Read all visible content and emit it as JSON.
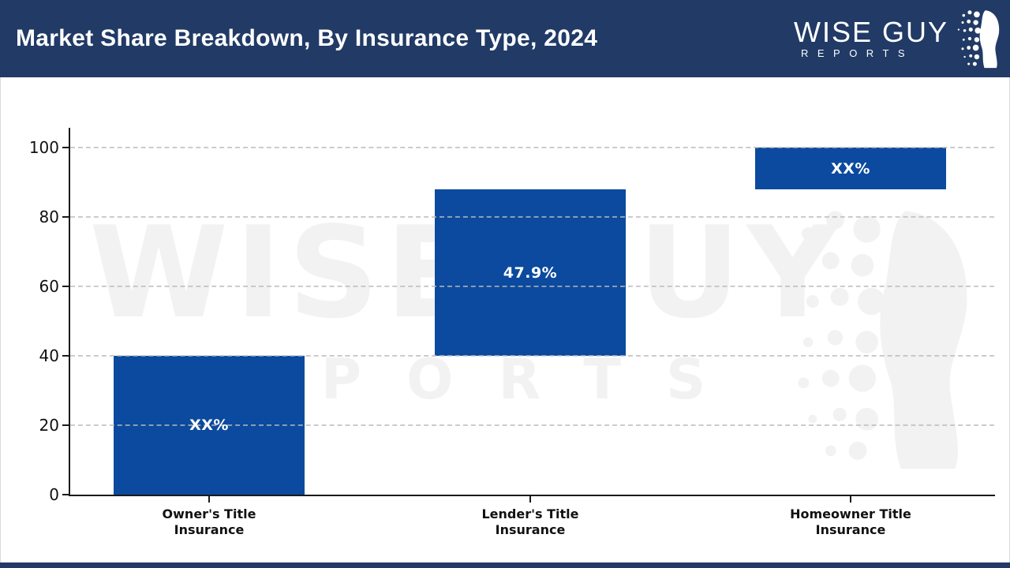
{
  "header": {
    "title": "Market Share Breakdown, By Insurance Type, 2024",
    "logo": {
      "line1": "WISE GUY",
      "line2": "REPORTS"
    }
  },
  "watermark": {
    "line1": "WISE GUY",
    "line2": "REPORTS"
  },
  "colors": {
    "header_bg": "#213a66",
    "footer_bg": "#213a66",
    "bar": "#0b4a9e",
    "grid": "#b9b9b9",
    "axis": "#1a1a1a",
    "watermark": "#f2f2f2"
  },
  "chart_data": {
    "type": "bar",
    "subtype": "waterfall-stacked",
    "title": "Market Share Breakdown, By Insurance Type, 2024",
    "categories": [
      "Owner's Title Insurance",
      "Lender's Title Insurance",
      "Homeowner Title Insurance"
    ],
    "bars": [
      {
        "category_lines": [
          "Owner's Title",
          "Insurance"
        ],
        "label": "XX%",
        "start": 0,
        "end": 40,
        "value_est": 40
      },
      {
        "category_lines": [
          "Lender's Title",
          "Insurance"
        ],
        "label": "47.9%",
        "start": 40,
        "end": 87.9,
        "value_est": 47.9
      },
      {
        "category_lines": [
          "Homeowner Title",
          "Insurance"
        ],
        "label": "XX%",
        "start": 87.9,
        "end": 100,
        "value_est": 12.1
      }
    ],
    "xlabel": "",
    "ylabel": "",
    "ylim": [
      0,
      100
    ],
    "yticks": [
      0,
      20,
      40,
      60,
      80,
      100
    ],
    "grid": "horizontal-dashed",
    "legend": "none",
    "bar_color": "#0b4a9e"
  }
}
